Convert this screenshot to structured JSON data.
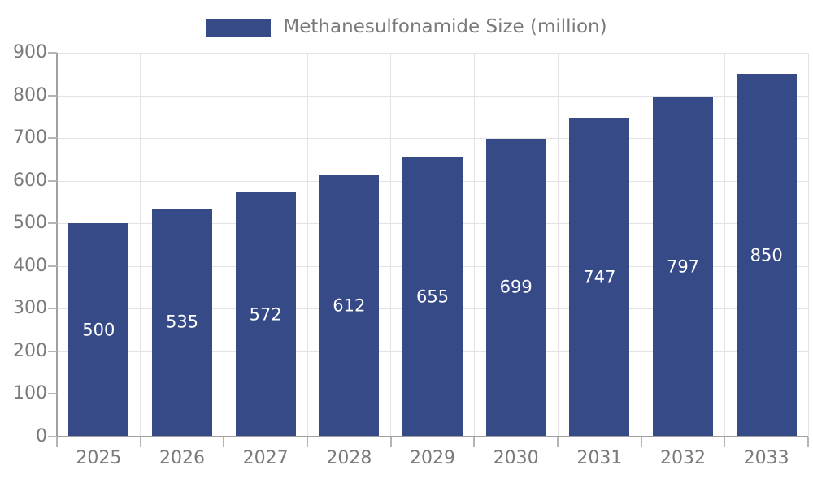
{
  "chart_data": {
    "type": "bar",
    "categories": [
      "2025",
      "2026",
      "2027",
      "2028",
      "2029",
      "2030",
      "2031",
      "2032",
      "2033"
    ],
    "series": [
      {
        "name": "Methanesulfonamide Size (million)",
        "values": [
          500,
          535,
          572,
          612,
          655,
          699,
          747,
          797,
          850
        ],
        "color": "#364a87"
      }
    ],
    "title": "",
    "xlabel": "",
    "ylabel": "",
    "ylim": [
      0,
      900
    ],
    "ytick_step": 100,
    "yticks": [
      0,
      100,
      200,
      300,
      400,
      500,
      600,
      700,
      800,
      900
    ],
    "grid": true,
    "legend_position": "top",
    "value_labels": "inside-center",
    "colors": {
      "bar": "#364a87",
      "bar_label": "#ffffff",
      "axis_line": "#a0a0a0",
      "tick": "#b5b5b5",
      "gridline": "#e3e3e3",
      "tick_label": "#7a7a7a",
      "legend_text": "#7a7a7a"
    }
  }
}
